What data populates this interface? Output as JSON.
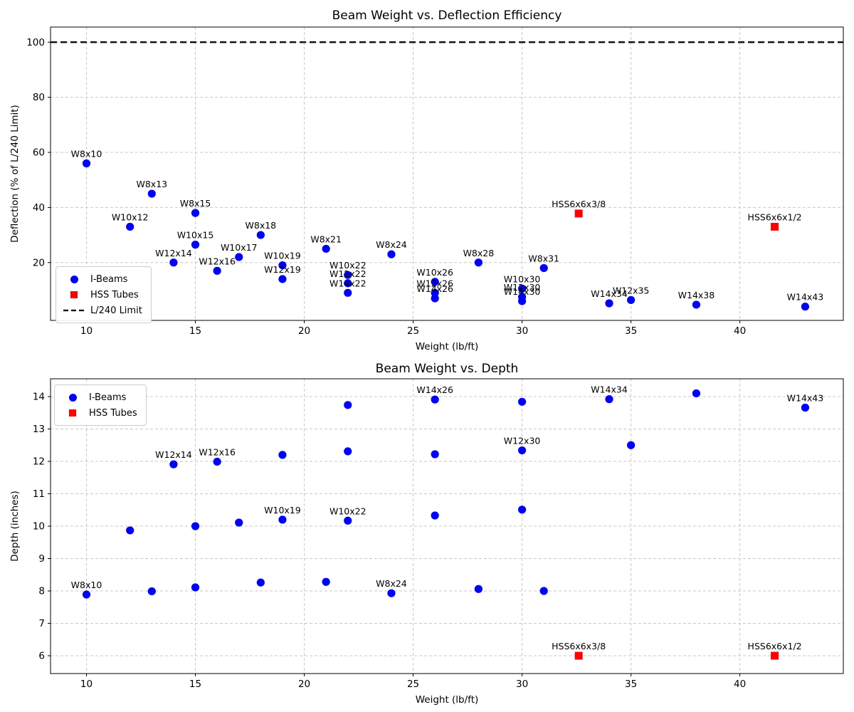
{
  "figure": {
    "description": "Two stacked scatter plots comparing steel beam weight to deflection efficiency and depth"
  },
  "chart_data": [
    {
      "type": "scatter",
      "title": "Beam Weight vs. Deflection Efficiency",
      "xlabel": "Weight (lb/ft)",
      "ylabel": "Deflection (% of L/240 Limit)",
      "xlim": [
        8.35,
        44.75
      ],
      "ylim": [
        -1,
        105.5
      ],
      "xticks": [
        10,
        15,
        20,
        25,
        30,
        35,
        40
      ],
      "yticks": [
        20,
        40,
        60,
        80,
        100
      ],
      "grid": true,
      "grid_color": "#c8c8c8",
      "ref_line": {
        "y": 100,
        "label": "L/240 Limit",
        "color": "#000000",
        "style": "dashed"
      },
      "legend": {
        "position": "lower-left",
        "entries": [
          {
            "label": "I-Beams",
            "marker": "circle",
            "color": "#0000ff"
          },
          {
            "label": "HSS Tubes",
            "marker": "square",
            "color": "#ff0000"
          },
          {
            "label": "L/240 Limit",
            "marker": "dashed-line",
            "color": "#000000"
          }
        ]
      },
      "series": [
        {
          "name": "I-Beams",
          "marker": "circle",
          "color": "#0000ff",
          "points": [
            {
              "label": "W8x10",
              "x": 10,
              "y": 56,
              "show_label": true
            },
            {
              "label": "W10x12",
              "x": 12,
              "y": 33,
              "show_label": true
            },
            {
              "label": "W8x13",
              "x": 13,
              "y": 45,
              "show_label": true
            },
            {
              "label": "W12x14",
              "x": 14,
              "y": 20,
              "show_label": true
            },
            {
              "label": "W8x15",
              "x": 15,
              "y": 38,
              "show_label": true
            },
            {
              "label": "W10x15",
              "x": 15,
              "y": 26.5,
              "show_label": true
            },
            {
              "label": "W12x16",
              "x": 16,
              "y": 17,
              "show_label": true
            },
            {
              "label": "W10x17",
              "x": 17,
              "y": 22,
              "show_label": true
            },
            {
              "label": "W8x18",
              "x": 18,
              "y": 30,
              "show_label": true
            },
            {
              "label": "W10x19",
              "x": 19,
              "y": 19,
              "show_label": true
            },
            {
              "label": "W12x19",
              "x": 19,
              "y": 14,
              "show_label": true
            },
            {
              "label": "W8x21",
              "x": 21,
              "y": 25,
              "show_label": true
            },
            {
              "label": "W10x22",
              "x": 22,
              "y": 15.5,
              "show_label": true
            },
            {
              "label": "W12x22",
              "x": 22,
              "y": 12.5,
              "show_label": true
            },
            {
              "label": "W14x22",
              "x": 22,
              "y": 9,
              "show_label": true
            },
            {
              "label": "W8x24",
              "x": 24,
              "y": 23,
              "show_label": true
            },
            {
              "label": "W10x26",
              "x": 26,
              "y": 13,
              "show_label": true
            },
            {
              "label": "W12x26",
              "x": 26,
              "y": 9,
              "show_label": true
            },
            {
              "label": "W14x26",
              "x": 26,
              "y": 7,
              "show_label": true
            },
            {
              "label": "W8x28",
              "x": 28,
              "y": 20,
              "show_label": true
            },
            {
              "label": "W10x30",
              "x": 30,
              "y": 10.5,
              "show_label": true
            },
            {
              "label": "W12x30",
              "x": 30,
              "y": 7.5,
              "show_label": true
            },
            {
              "label": "W14x30",
              "x": 30,
              "y": 6,
              "show_label": true
            },
            {
              "label": "W8x31",
              "x": 31,
              "y": 18,
              "show_label": true
            },
            {
              "label": "W14x34",
              "x": 34,
              "y": 5.2,
              "show_label": true
            },
            {
              "label": "W12x35",
              "x": 35,
              "y": 6.4,
              "show_label": true
            },
            {
              "label": "W14x38",
              "x": 38,
              "y": 4.7,
              "show_label": true
            },
            {
              "label": "W14x43",
              "x": 43,
              "y": 4,
              "show_label": true
            }
          ]
        },
        {
          "name": "HSS Tubes",
          "marker": "square",
          "color": "#ff0000",
          "points": [
            {
              "label": "HSS6x6x3/8",
              "x": 32.6,
              "y": 37.8,
              "show_label": true
            },
            {
              "label": "HSS6x6x1/2",
              "x": 41.6,
              "y": 33,
              "show_label": true
            }
          ]
        }
      ]
    },
    {
      "type": "scatter",
      "title": "Beam Weight vs. Depth",
      "xlabel": "Weight (lb/ft)",
      "ylabel": "Depth (inches)",
      "xlim": [
        8.35,
        44.75
      ],
      "ylim": [
        5.45,
        14.55
      ],
      "xticks": [
        10,
        15,
        20,
        25,
        30,
        35,
        40
      ],
      "yticks": [
        6,
        7,
        8,
        9,
        10,
        11,
        12,
        13,
        14
      ],
      "grid": true,
      "grid_color": "#c8c8c8",
      "ref_line": null,
      "legend": {
        "position": "upper-left",
        "entries": [
          {
            "label": "I-Beams",
            "marker": "circle",
            "color": "#0000ff"
          },
          {
            "label": "HSS Tubes",
            "marker": "square",
            "color": "#ff0000"
          }
        ]
      },
      "series": [
        {
          "name": "I-Beams",
          "marker": "circle",
          "color": "#0000ff",
          "points": [
            {
              "label": "W8x10",
              "x": 10,
              "y": 7.89,
              "show_label": true
            },
            {
              "label": "W10x12",
              "x": 12,
              "y": 9.87,
              "show_label": false
            },
            {
              "label": "W8x13",
              "x": 13,
              "y": 7.99,
              "show_label": false
            },
            {
              "label": "W12x14",
              "x": 14,
              "y": 11.91,
              "show_label": true
            },
            {
              "label": "W8x15",
              "x": 15,
              "y": 8.11,
              "show_label": false
            },
            {
              "label": "W10x15",
              "x": 15,
              "y": 10.0,
              "show_label": false
            },
            {
              "label": "W12x16",
              "x": 16,
              "y": 11.99,
              "show_label": true
            },
            {
              "label": "W10x17",
              "x": 17,
              "y": 10.11,
              "show_label": false
            },
            {
              "label": "W8x18",
              "x": 18,
              "y": 8.26,
              "show_label": false
            },
            {
              "label": "W10x19",
              "x": 19,
              "y": 10.2,
              "show_label": true
            },
            {
              "label": "W12x19",
              "x": 19,
              "y": 12.2,
              "show_label": false
            },
            {
              "label": "W8x21",
              "x": 21,
              "y": 8.28,
              "show_label": false
            },
            {
              "label": "W10x22",
              "x": 22,
              "y": 10.17,
              "show_label": true
            },
            {
              "label": "W12x22",
              "x": 22,
              "y": 12.31,
              "show_label": false
            },
            {
              "label": "W14x22",
              "x": 22,
              "y": 13.74,
              "show_label": false
            },
            {
              "label": "W8x24",
              "x": 24,
              "y": 7.93,
              "show_label": true
            },
            {
              "label": "W10x26",
              "x": 26,
              "y": 10.33,
              "show_label": false
            },
            {
              "label": "W12x26",
              "x": 26,
              "y": 12.22,
              "show_label": false
            },
            {
              "label": "W14x26",
              "x": 26,
              "y": 13.91,
              "show_label": true
            },
            {
              "label": "W8x28",
              "x": 28,
              "y": 8.06,
              "show_label": false
            },
            {
              "label": "W10x30",
              "x": 30,
              "y": 10.51,
              "show_label": false
            },
            {
              "label": "W12x30",
              "x": 30,
              "y": 12.34,
              "show_label": true
            },
            {
              "label": "W14x30",
              "x": 30,
              "y": 13.84,
              "show_label": false
            },
            {
              "label": "W8x31",
              "x": 31,
              "y": 8.0,
              "show_label": false
            },
            {
              "label": "W14x34",
              "x": 34,
              "y": 13.92,
              "show_label": true
            },
            {
              "label": "W12x35",
              "x": 35,
              "y": 12.5,
              "show_label": false
            },
            {
              "label": "W14x38",
              "x": 38,
              "y": 14.1,
              "show_label": false
            },
            {
              "label": "W14x43",
              "x": 43,
              "y": 13.66,
              "show_label": true
            }
          ]
        },
        {
          "name": "HSS Tubes",
          "marker": "square",
          "color": "#ff0000",
          "points": [
            {
              "label": "HSS6x6x3/8",
              "x": 32.6,
              "y": 6.0,
              "show_label": true
            },
            {
              "label": "HSS6x6x1/2",
              "x": 41.6,
              "y": 6.0,
              "show_label": true
            }
          ]
        }
      ]
    }
  ]
}
